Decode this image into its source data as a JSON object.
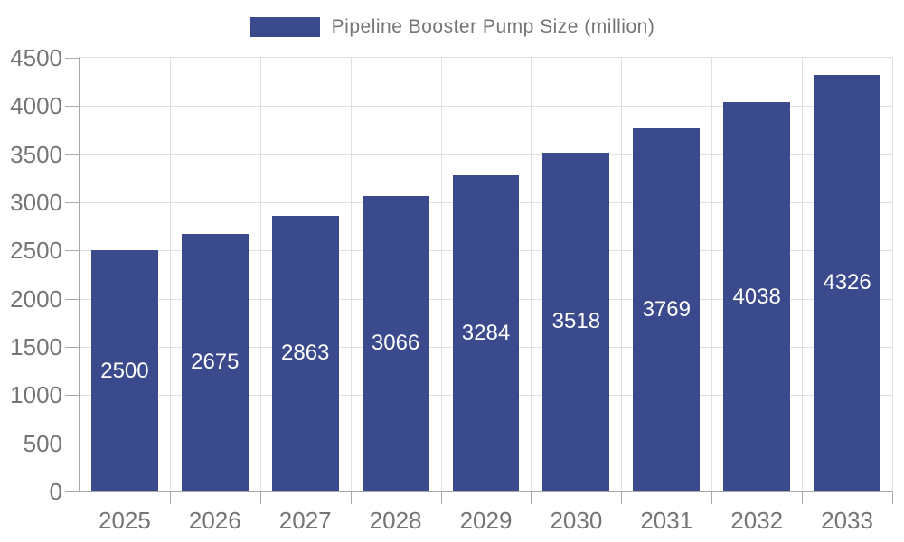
{
  "legend": {
    "label": "Pipeline Booster Pump Size (million)"
  },
  "colors": {
    "bar": "#3B4A8C",
    "axis_text": "#757575",
    "bar_label_text": "#ffffff",
    "gridline": "#e0e0e0",
    "axis_line": "#a8a8a8",
    "background": "#ffffff"
  },
  "chart_data": {
    "type": "bar",
    "title": "Pipeline Booster Pump Size (million)",
    "categories": [
      "2025",
      "2026",
      "2027",
      "2028",
      "2029",
      "2030",
      "2031",
      "2032",
      "2033"
    ],
    "values": [
      2500,
      2675,
      2863,
      3066,
      3284,
      3518,
      3769,
      4038,
      4326
    ],
    "series_name": "Pipeline Booster Pump Size (million)",
    "xlabel": "",
    "ylabel": "",
    "ylim": [
      0,
      4500
    ],
    "yticks": [
      0,
      500,
      1000,
      1500,
      2000,
      2500,
      3000,
      3500,
      4000,
      4500
    ],
    "grid": true,
    "legend_position": "top-center",
    "bar_labels_inside": true
  }
}
